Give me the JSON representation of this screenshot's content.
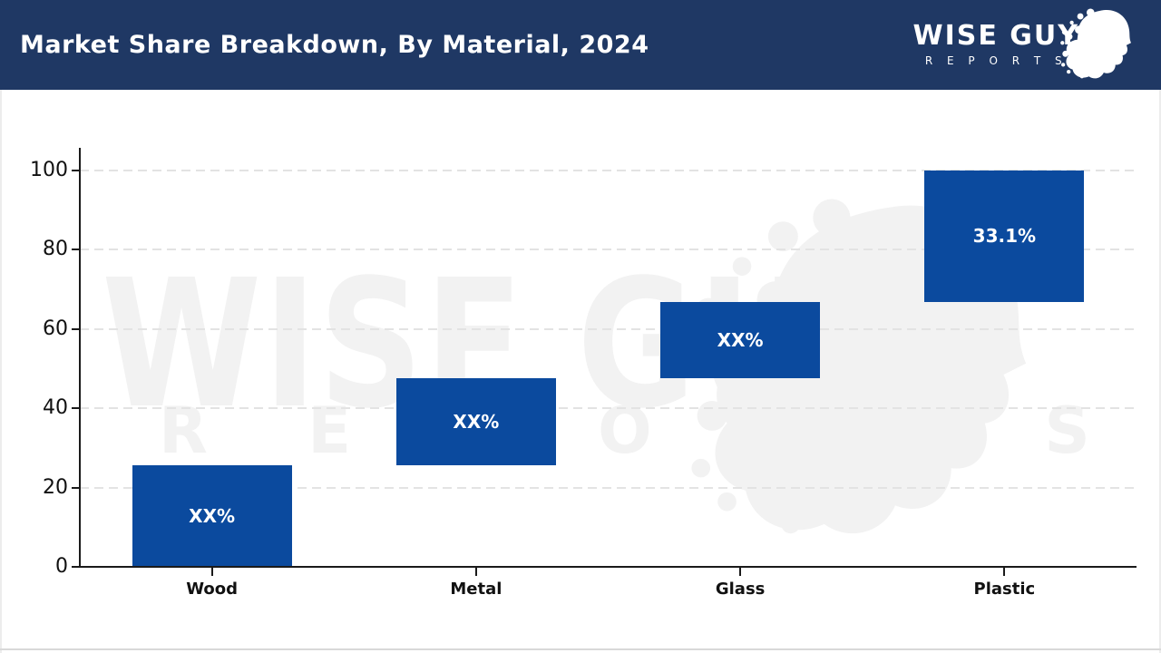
{
  "header": {
    "title": "Market Share Breakdown, By Material, 2024",
    "logo": {
      "wordmark": "WISE GUY",
      "subtext": "R E P O R T S"
    }
  },
  "watermark": {
    "wordmark": "WISE GUY",
    "subtext": "R E P O R T S"
  },
  "chart_data": {
    "type": "bar",
    "subtype": "waterfall",
    "title": "Market Share Breakdown, By Material, 2024",
    "categories": [
      "Wood",
      "Metal",
      "Glass",
      "Plastic"
    ],
    "segments": [
      {
        "category": "Wood",
        "start": 0,
        "end": 25.6,
        "value": 25.6,
        "label": "XX%"
      },
      {
        "category": "Metal",
        "start": 25.6,
        "end": 47.5,
        "value": 21.9,
        "label": "XX%"
      },
      {
        "category": "Glass",
        "start": 47.5,
        "end": 66.9,
        "value": 19.4,
        "label": "XX%"
      },
      {
        "category": "Plastic",
        "start": 66.9,
        "end": 100,
        "value": 33.1,
        "label": "33.1%"
      }
    ],
    "xlabel": "",
    "ylabel": "",
    "ylim": [
      0,
      100
    ],
    "yticks": [
      0,
      20,
      40,
      60,
      80,
      100
    ],
    "grid": "horizontal-dashed",
    "legend": "none"
  },
  "colors": {
    "header_bg": "#1f3864",
    "header_text": "#ffffff",
    "bar": "#0b4a9e",
    "bar_label": "#ffffff",
    "grid": "#e3e3e3",
    "axis": "#1a1a1a",
    "tick_label": "#111111",
    "watermark": "#f2f2f2",
    "divider": "#d9d9d9"
  }
}
